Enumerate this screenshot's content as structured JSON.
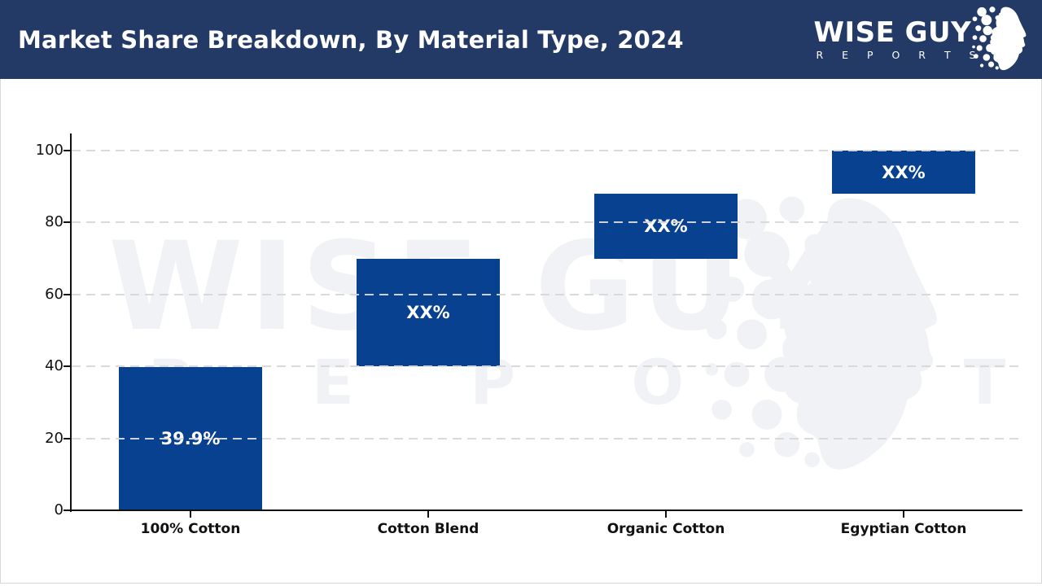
{
  "header": {
    "title": "Market Share Breakdown, By Material Type, 2024",
    "background": "#233a66",
    "logo": {
      "line1": "WISE GUY",
      "line2": "R E P O R T S"
    }
  },
  "watermark": {
    "line1": "WISE GUY",
    "line2": "R E P O R T S"
  },
  "chart_data": {
    "type": "bar",
    "subtype": "waterfall",
    "title": "Market Share Breakdown, By Material Type, 2024",
    "categories": [
      "100% Cotton",
      "Cotton Blend",
      "Organic Cotton",
      "Egyptian Cotton"
    ],
    "series": [
      {
        "name": "Market share (%)",
        "segments": [
          {
            "category": "100% Cotton",
            "start": 0,
            "end": 39.9,
            "label": "39.9%"
          },
          {
            "category": "Cotton Blend",
            "start": 40,
            "end": 70,
            "label": "XX%"
          },
          {
            "category": "Organic Cotton",
            "start": 70,
            "end": 88,
            "label": "XX%"
          },
          {
            "category": "Egyptian Cotton",
            "start": 88,
            "end": 100,
            "label": "XX%"
          }
        ]
      }
    ],
    "ylim": [
      0,
      100
    ],
    "yticks": [
      0,
      20,
      40,
      60,
      80,
      100
    ],
    "grid": "horizontal-dashed",
    "legend": "none",
    "colors": {
      "bar": "#07418f",
      "bar_label": "#ffffff",
      "grid": "#d8d8d8",
      "axis": "#111111",
      "header_bg": "#233a66",
      "watermark": "#f1f2f5"
    }
  }
}
